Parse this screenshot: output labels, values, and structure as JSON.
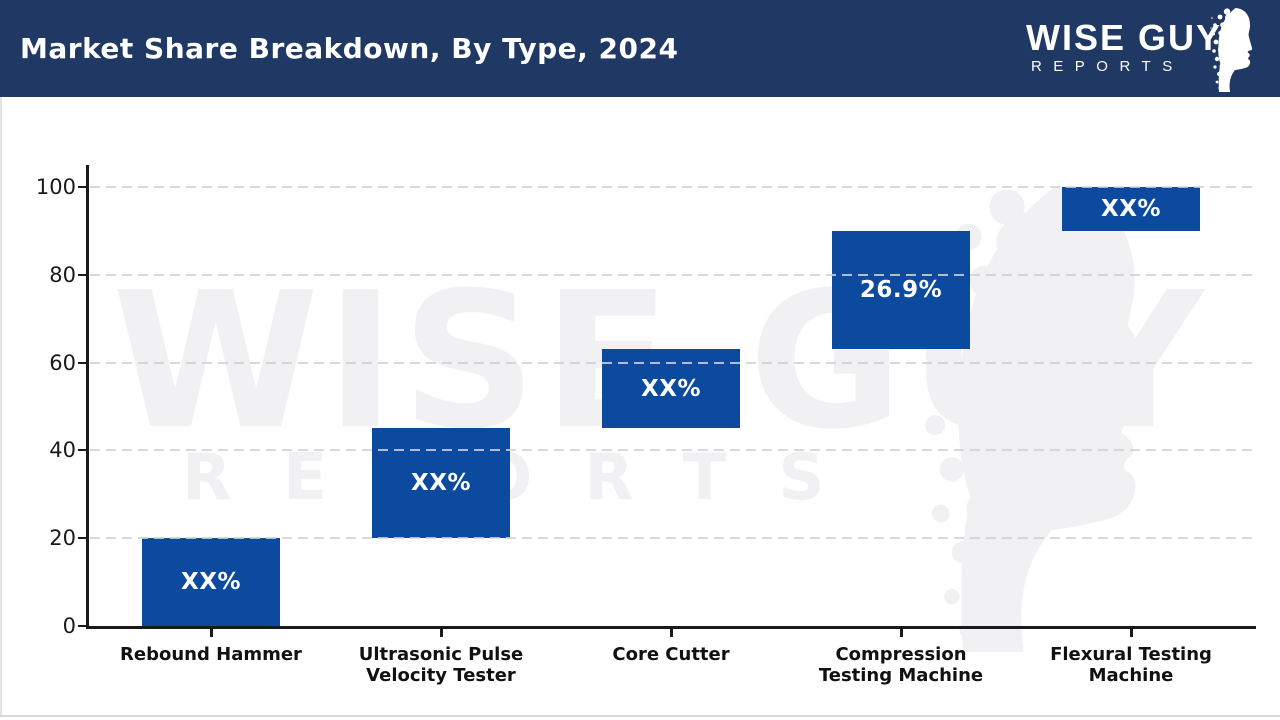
{
  "header": {
    "title": "Market Share Breakdown, By Type, 2024",
    "logo": {
      "line1": "WISE GUY",
      "line2": "REPORTS"
    }
  },
  "watermark": {
    "line1": "WISE GUY",
    "line2": "REPORTS"
  },
  "colors": {
    "header_bg": "#203864",
    "bar": "#0b4a9e",
    "bar_label": "#ffffff",
    "axis": "#1a1a1a",
    "gridline": "#d2d2d2",
    "watermark": "#f1f1f4"
  },
  "chart_data": {
    "type": "bar",
    "variant": "waterfall",
    "title": "Market Share Breakdown, By Type, 2024",
    "categories": [
      "Rebound Hammer",
      "Ultrasonic Pulse\nVelocity Tester",
      "Core Cutter",
      "Compression\nTesting Machine",
      "Flexural Testing\nMachine"
    ],
    "segments": [
      {
        "category": "Rebound Hammer",
        "start": 0,
        "end": 20,
        "label": "XX%"
      },
      {
        "category": "Ultrasonic Pulse Velocity Tester",
        "start": 20,
        "end": 45,
        "label": "XX%"
      },
      {
        "category": "Core Cutter",
        "start": 45,
        "end": 63,
        "label": "XX%"
      },
      {
        "category": "Compression Testing Machine",
        "start": 63,
        "end": 89.9,
        "label": "26.9%"
      },
      {
        "category": "Flexural Testing Machine",
        "start": 89.9,
        "end": 100,
        "label": "XX%"
      }
    ],
    "ylim": [
      0,
      100
    ],
    "yticks": [
      0,
      20,
      40,
      60,
      80,
      100
    ],
    "xlabel": "",
    "ylabel": "",
    "grid": "horizontal-dashed",
    "legend": null
  }
}
